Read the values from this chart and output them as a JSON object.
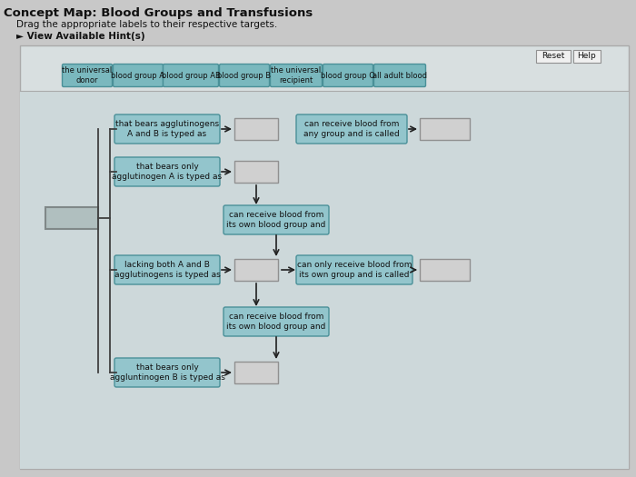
{
  "title": "Concept Map: Blood Groups and Transfusions",
  "subtitle": "Drag the appropriate labels to their respective targets.",
  "hint_text": "► View Available Hint(s)",
  "bg_outer": "#c8c8c8",
  "bg_panel": "#d8dfe0",
  "bg_inner": "#cdd8da",
  "label_fill": "#7ab8be",
  "label_edge": "#4a9098",
  "tbox_fill": "#93c5cc",
  "tbox_edge": "#4a9098",
  "blank_fill": "#d0d0d0",
  "blank_edge": "#909090",
  "lbbox_fill": "#b0bfbf",
  "lbbox_edge": "#808888",
  "btn_fill": "#f0f0f0",
  "btn_edge": "#909090",
  "line_color": "#404040",
  "arrow_color": "#202020",
  "text_color": "#1a1a1a",
  "labels": [
    "the universal\ndonor",
    "blood group A",
    "blood group AB",
    "blood group B",
    "the universal\nrecipient",
    "blood group O",
    "all adult blood"
  ],
  "reset_btn": "Reset",
  "help_btn": "Help"
}
